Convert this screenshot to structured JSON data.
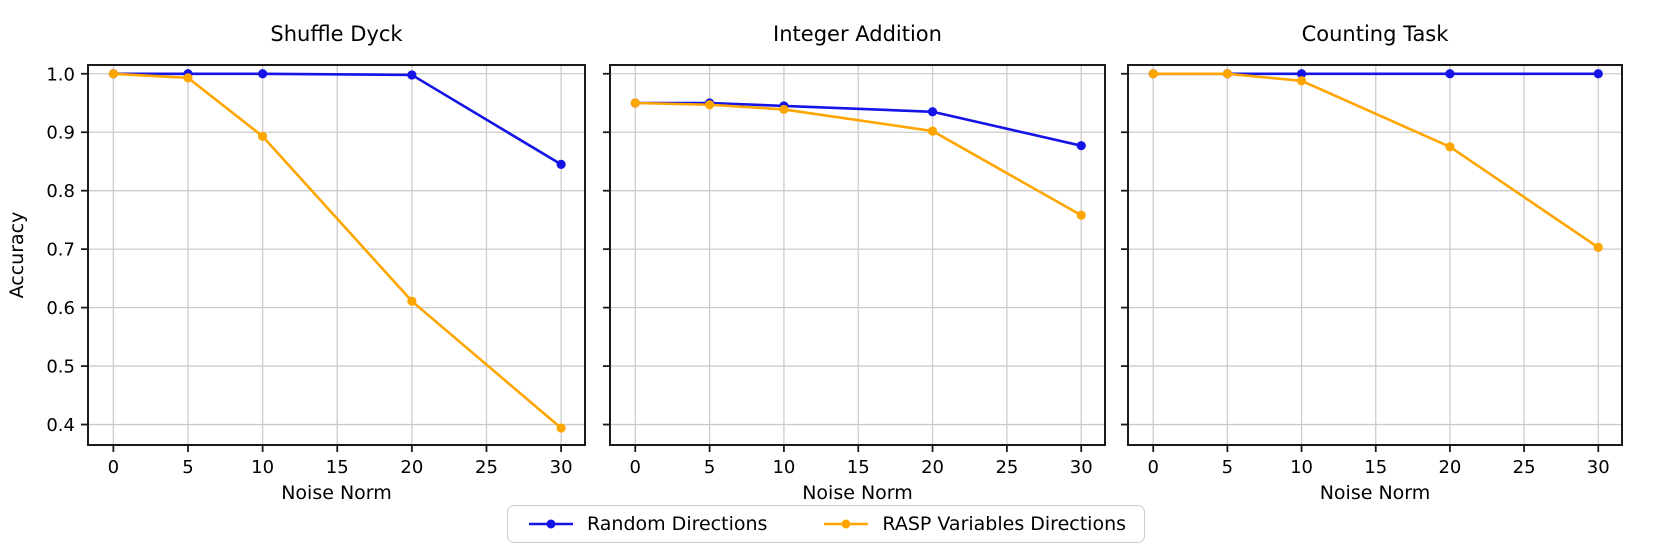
{
  "figure": {
    "background": "#ffffff",
    "ylabel": "Accuracy",
    "frame_color": "#1a1a1a",
    "grid_color": "#cccccc"
  },
  "legend": {
    "entries": [
      {
        "label": "Random Directions",
        "color": "#1414e6"
      },
      {
        "label": "RASP Variables Directions",
        "color": "#ffa500"
      }
    ]
  },
  "chart_data": [
    {
      "type": "line",
      "title": "Shuffle Dyck",
      "xlabel": "Noise Norm",
      "ylabel": "Accuracy",
      "x": [
        0,
        5,
        10,
        20,
        30
      ],
      "series": [
        {
          "name": "Random Directions",
          "color": "#1414e6",
          "values": [
            1.0,
            1.0,
            1.0,
            0.998,
            0.845
          ]
        },
        {
          "name": "RASP Variables Directions",
          "color": "#ffa500",
          "values": [
            1.0,
            0.993,
            0.893,
            0.611,
            0.394
          ]
        }
      ],
      "xticks": [
        0,
        5,
        10,
        15,
        20,
        25,
        30
      ],
      "yticks": [
        0.4,
        0.5,
        0.6,
        0.7,
        0.8,
        0.9,
        1.0
      ],
      "xlim": [
        -1.7,
        31.6
      ],
      "ylim": [
        0.365,
        1.015
      ],
      "grid": true,
      "show_ytick_labels": true,
      "legend_position": "bottom-center"
    },
    {
      "type": "line",
      "title": "Integer Addition",
      "xlabel": "Noise Norm",
      "ylabel": "Accuracy",
      "x": [
        0,
        5,
        10,
        20,
        30
      ],
      "series": [
        {
          "name": "Random Directions",
          "color": "#1414e6",
          "values": [
            0.95,
            0.95,
            0.945,
            0.935,
            0.877
          ]
        },
        {
          "name": "RASP Variables Directions",
          "color": "#ffa500",
          "values": [
            0.95,
            0.947,
            0.939,
            0.902,
            0.758
          ]
        }
      ],
      "xticks": [
        0,
        5,
        10,
        15,
        20,
        25,
        30
      ],
      "yticks": [
        0.4,
        0.5,
        0.6,
        0.7,
        0.8,
        0.9,
        1.0
      ],
      "xlim": [
        -1.7,
        31.6
      ],
      "ylim": [
        0.365,
        1.015
      ],
      "grid": true,
      "show_ytick_labels": false,
      "legend_position": "bottom-center"
    },
    {
      "type": "line",
      "title": "Counting Task",
      "xlabel": "Noise Norm",
      "ylabel": "Accuracy",
      "x": [
        0,
        5,
        10,
        20,
        30
      ],
      "series": [
        {
          "name": "Random Directions",
          "color": "#1414e6",
          "values": [
            1.0,
            1.0,
            1.0,
            1.0,
            1.0
          ]
        },
        {
          "name": "RASP Variables Directions",
          "color": "#ffa500",
          "values": [
            1.0,
            1.0,
            0.988,
            0.875,
            0.703
          ]
        }
      ],
      "xticks": [
        0,
        5,
        10,
        15,
        20,
        25,
        30
      ],
      "yticks": [
        0.4,
        0.5,
        0.6,
        0.7,
        0.8,
        0.9,
        1.0
      ],
      "xlim": [
        -1.7,
        31.6
      ],
      "ylim": [
        0.365,
        1.015
      ],
      "grid": true,
      "show_ytick_labels": false,
      "legend_position": "bottom-center"
    }
  ]
}
